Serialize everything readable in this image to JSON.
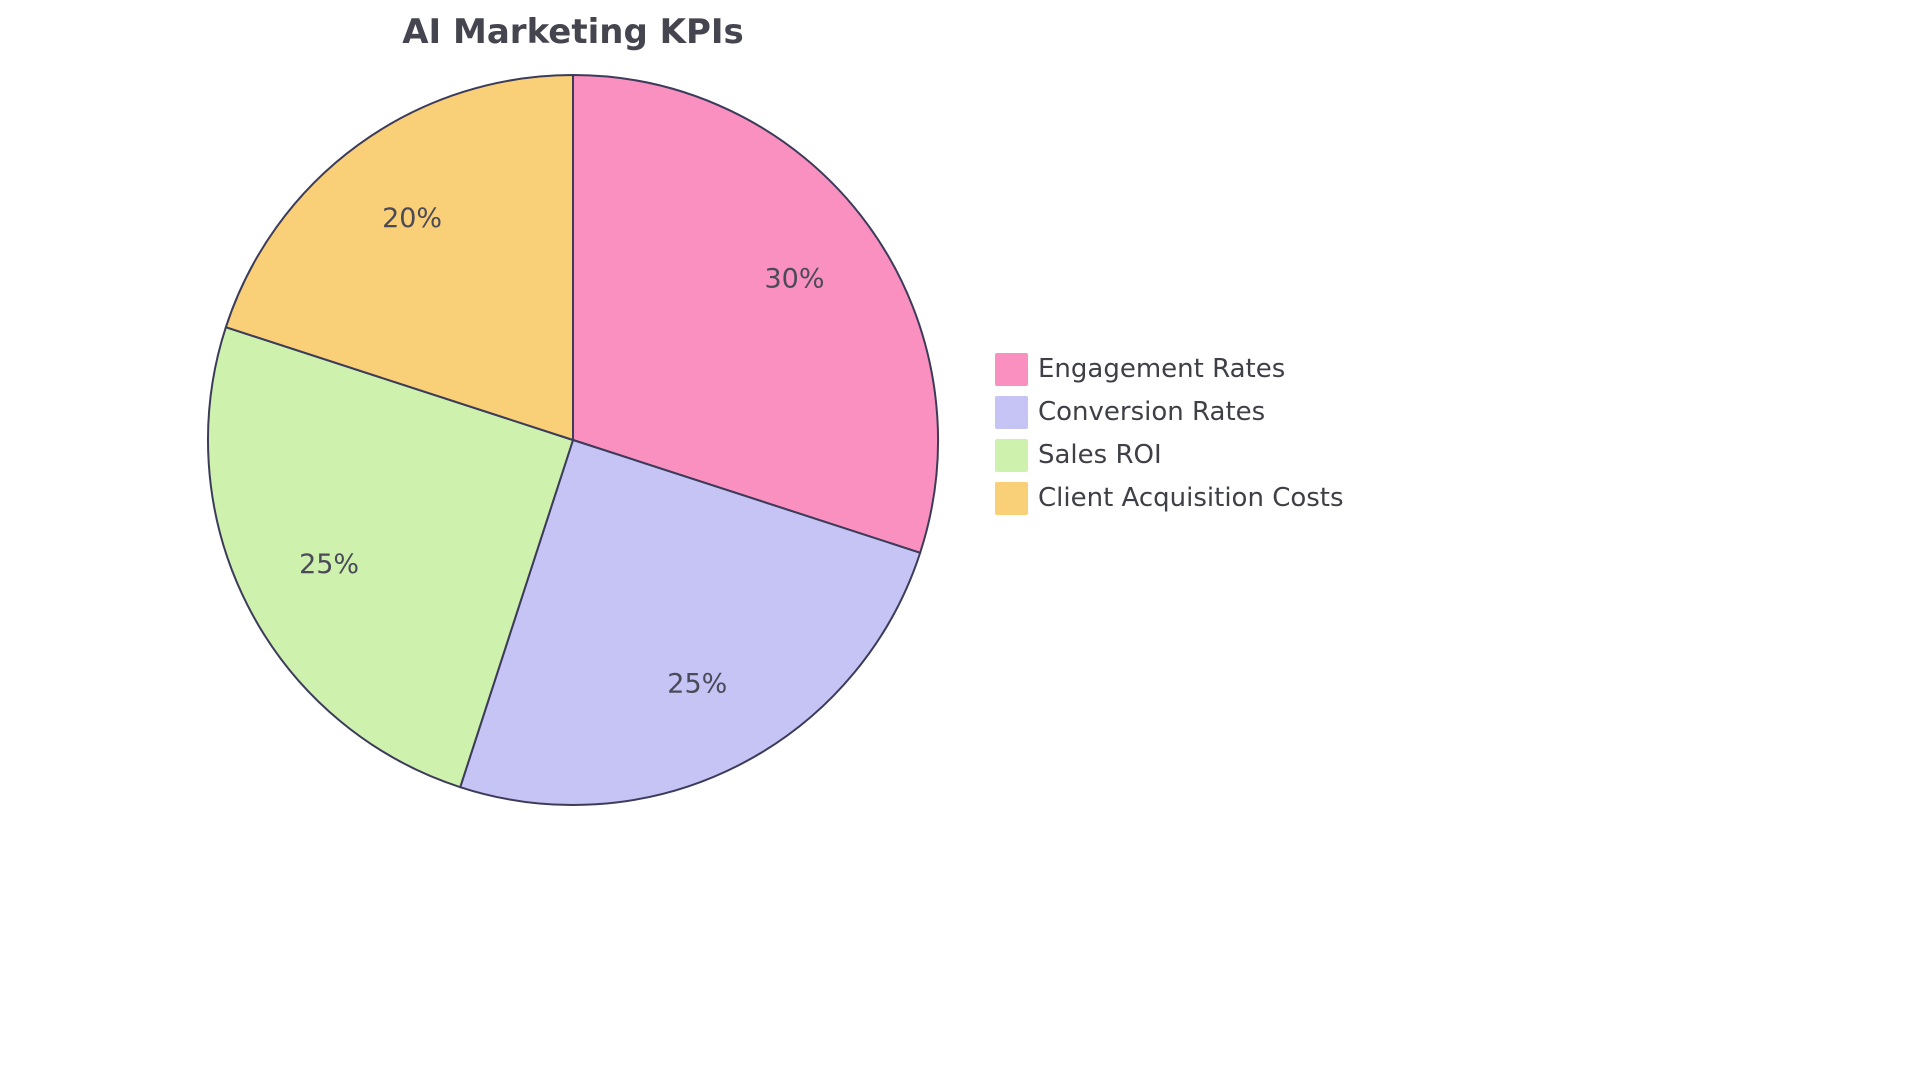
{
  "chart_data": {
    "type": "pie",
    "title": "AI Marketing KPIs",
    "categories": [
      "Engagement Rates",
      "Conversion Rates",
      "Sales ROI",
      "Client Acquisition Costs"
    ],
    "values": [
      30,
      25,
      25,
      20
    ],
    "slice_labels": [
      "30%",
      "25%",
      "25%",
      "20%"
    ],
    "colors": [
      "#F990C0",
      "#C6C3F5",
      "#CFF1AE",
      "#F9CF77"
    ],
    "stroke_color": "#3C3C5A",
    "start_angle": "top",
    "direction": "clockwise",
    "legend_position": "right"
  }
}
